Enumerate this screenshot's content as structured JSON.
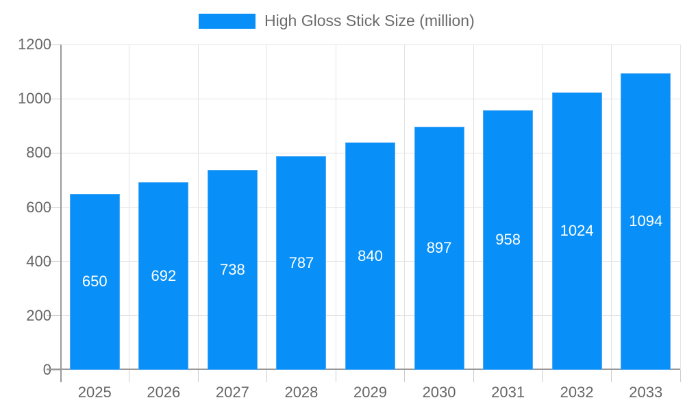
{
  "chart_data": {
    "type": "bar",
    "title": "High Gloss Stick Size (million)",
    "legend": {
      "label": "High Gloss Stick Size (million)",
      "position": "top-center"
    },
    "categories": [
      "2025",
      "2026",
      "2027",
      "2028",
      "2029",
      "2030",
      "2031",
      "2032",
      "2033"
    ],
    "series": [
      {
        "name": "High Gloss Stick Size (million)",
        "values": [
          650,
          692,
          738,
          787,
          840,
          897,
          958,
          1024,
          1094
        ]
      }
    ],
    "xlabel": "",
    "ylabel": "",
    "ylim": [
      0,
      1200
    ],
    "yticks": [
      0,
      200,
      400,
      600,
      800,
      1000,
      1200
    ],
    "grid": true,
    "data_labels": true,
    "colors": {
      "bar": "#0890f8",
      "bar_edge": "#4faaf7",
      "value_label": "#ffffff",
      "axis_text": "#666666",
      "legend_text": "#6b6b6b",
      "grid_line": "#e3e3e3",
      "tick_line": "#cccccc",
      "axis_line": "#999999"
    }
  }
}
